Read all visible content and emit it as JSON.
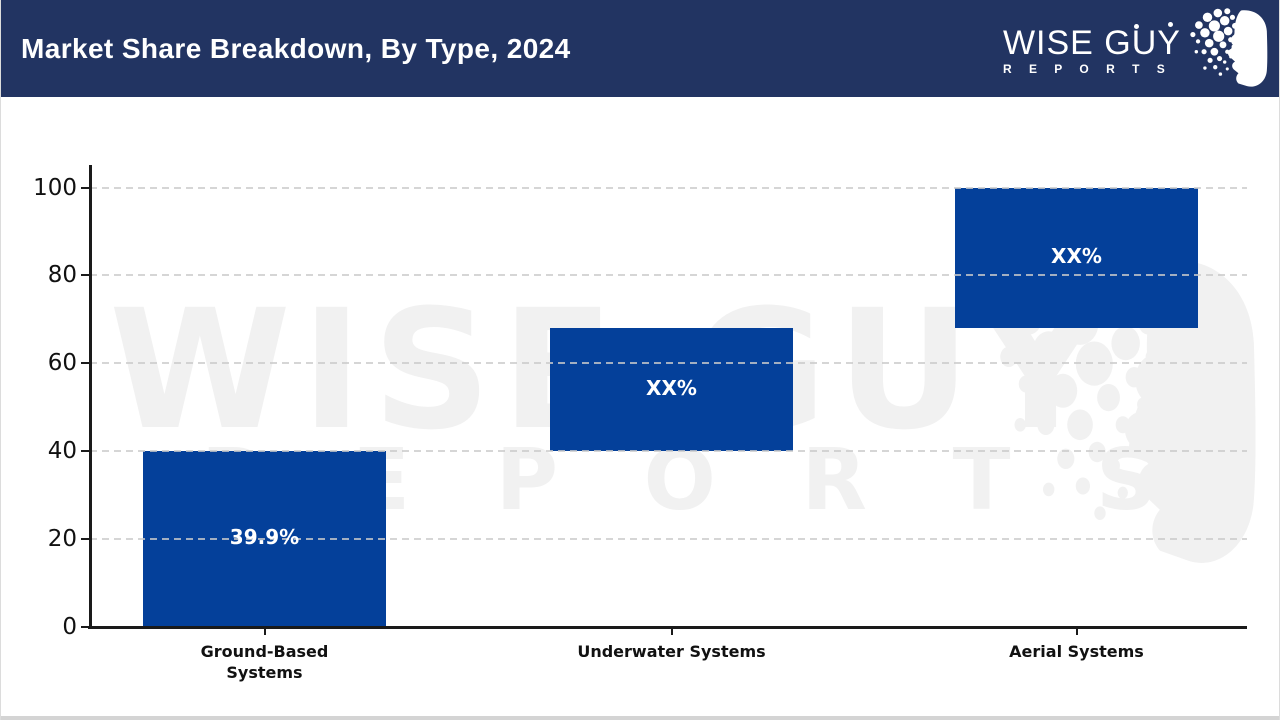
{
  "page": {
    "bg_color": "#ffffff",
    "bottom_strip_color": "#d4d4d4"
  },
  "header": {
    "title": "Market Share Breakdown, By Type, 2024",
    "bg_color": "#223462",
    "logo": {
      "line1": "WISE GUY",
      "line2": "R E P O R T S",
      "icon": "face-profile-dots-icon",
      "color": "#ffffff"
    }
  },
  "watermark": {
    "line1": "WISE GUY",
    "line2": "R E P O R T S",
    "icon": "face-profile-dots-icon",
    "color": "#f1f1f1"
  },
  "chart_data": {
    "type": "bar",
    "subtype": "floating-waterfall",
    "title": "Market Share Breakdown, By Type, 2024",
    "categories": [
      "Ground-Based Systems",
      "Underwater Systems",
      "Aerial Systems"
    ],
    "categories_display": [
      [
        "Ground-Based",
        "Systems"
      ],
      [
        "Underwater Systems"
      ],
      [
        "Aerial Systems"
      ]
    ],
    "series": [
      {
        "name": "Market Share (%)",
        "segments": [
          {
            "category": "Ground-Based Systems",
            "start": 0,
            "end": 39.9,
            "label": "39.9%"
          },
          {
            "category": "Underwater Systems",
            "start": 39.9,
            "end": 67.9,
            "label": "XX%"
          },
          {
            "category": "Aerial Systems",
            "start": 67.9,
            "end": 100,
            "label": "XX%"
          }
        ]
      }
    ],
    "xlabel": "",
    "ylabel": "",
    "ylim": [
      0,
      105
    ],
    "yticks": [
      0,
      20,
      40,
      60,
      80,
      100
    ],
    "grid": "horizontal-dashed",
    "legend": "none",
    "bar_color": "#04409a",
    "bar_label_color": "#ffffff",
    "axis_color": "#1a1a1a",
    "grid_color": "rgba(203,203,203,0.8)"
  }
}
